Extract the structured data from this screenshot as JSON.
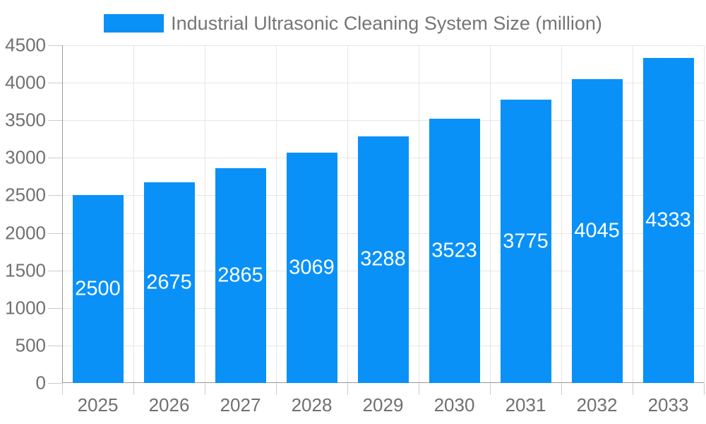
{
  "legend": {
    "label": "Industrial Ultrasonic Cleaning System Size (million)",
    "swatch_color": "#0991f8"
  },
  "chart_data": {
    "type": "bar",
    "title": "Industrial Ultrasonic Cleaning System Size (million)",
    "categories": [
      "2025",
      "2026",
      "2027",
      "2028",
      "2029",
      "2030",
      "2031",
      "2032",
      "2033"
    ],
    "values": [
      2500,
      2675,
      2865,
      3069,
      3288,
      3523,
      3775,
      4045,
      4333
    ],
    "ylim": [
      0,
      4500
    ],
    "ytick_step": 500,
    "ytick_labels": [
      "0",
      "500",
      "1000",
      "1500",
      "2000",
      "2500",
      "3000",
      "3500",
      "4000",
      "4500"
    ],
    "xlabel": "",
    "ylabel": "",
    "grid": true,
    "legend_position": "top-center",
    "bar_color": "#0991f8",
    "value_label_color": "#ffffff",
    "axis_text_color": "#707070",
    "legend_text_color": "#757575",
    "gridline_color": "#e6e6e6",
    "axis_line_color": "#999999"
  }
}
